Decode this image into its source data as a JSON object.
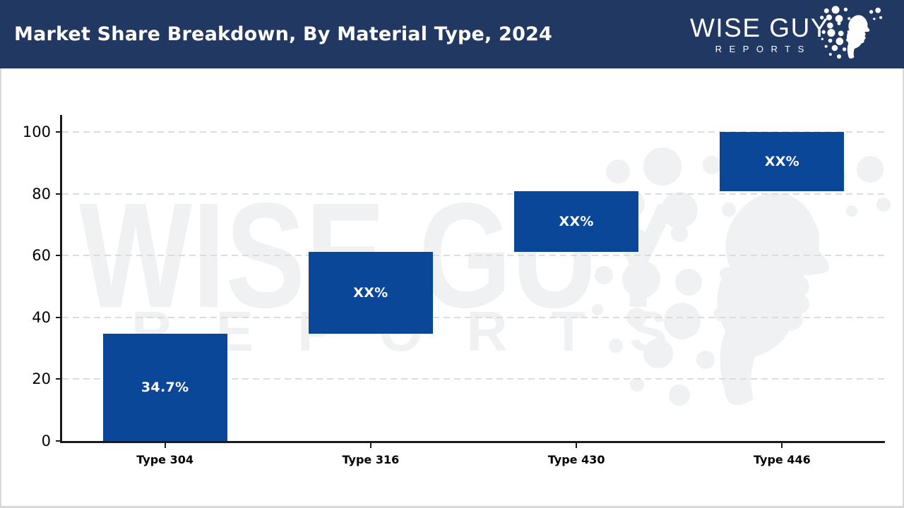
{
  "header": {
    "title": "Market Share Breakdown, By Material Type, 2024",
    "logo": {
      "line1": "WISE GUY",
      "line2": "REPORTS"
    }
  },
  "watermark": {
    "line1": "WISE GUY",
    "line2": "REPORTS"
  },
  "colors": {
    "background": "#ffffff",
    "header_bg": "#213862",
    "header_text": "#ffffff",
    "bar": "#0b4798",
    "bar_label": "#ffffff",
    "axis": "#1a1a1a",
    "grid": "#dcdcdc",
    "tick_label": "#000000",
    "watermark": "#f0f1f3",
    "page_border": "#d9d9d9"
  },
  "chart_data": {
    "type": "bar",
    "subtype": "waterfall",
    "title": "Market Share Breakdown, By Material Type, 2024",
    "categories": [
      "Type 304",
      "Type 316",
      "Type 430",
      "Type 446"
    ],
    "segments": [
      {
        "category": "Type 304",
        "start": 0,
        "end": 34.7,
        "label": "34.7%"
      },
      {
        "category": "Type 316",
        "start": 34.7,
        "end": 61.2,
        "label": "XX%"
      },
      {
        "category": "Type 430",
        "start": 61.2,
        "end": 80.8,
        "label": "XX%"
      },
      {
        "category": "Type 446",
        "start": 80.8,
        "end": 100,
        "label": "XX%"
      }
    ],
    "yticks": [
      0,
      20,
      40,
      60,
      80,
      100
    ],
    "ylim": [
      0,
      105.5
    ],
    "xlabel": "",
    "ylabel": "",
    "grid": "dashed-horizontal",
    "legend": "none"
  }
}
